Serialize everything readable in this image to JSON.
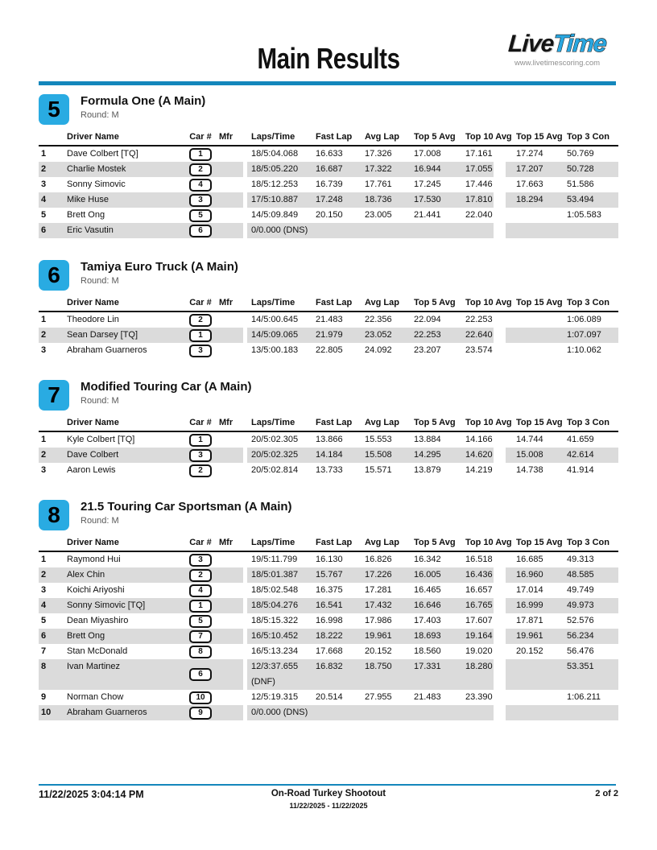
{
  "header": {
    "title": "Main Results",
    "logo_live": "Live",
    "logo_time": "Time",
    "logo_url": "www.livetimescoring.com"
  },
  "table": {
    "columns": [
      "Driver Name",
      "Car #",
      "Mfr",
      "Laps/Time",
      "Fast Lap",
      "Avg Lap",
      "Top 5 Avg",
      "Top 10 Avg",
      "Top 15 Avg",
      "Top 3 Con"
    ]
  },
  "sections": [
    {
      "number": "5",
      "title": "Formula One (A Main)",
      "round": "Round: M",
      "rows": [
        {
          "pos": "1",
          "driver": "Dave Colbert [TQ]",
          "car": "1",
          "mfr": "",
          "laps": "18/5:04.068",
          "laps2": "",
          "fast": "16.633",
          "avg": "17.326",
          "top5": "17.008",
          "top10": "17.161",
          "top15": "17.274",
          "top3": "50.769"
        },
        {
          "pos": "2",
          "driver": "Charlie Mostek",
          "car": "2",
          "mfr": "",
          "laps": "18/5:05.220",
          "laps2": "",
          "fast": "16.687",
          "avg": "17.322",
          "top5": "16.944",
          "top10": "17.055",
          "top15": "17.207",
          "top3": "50.728"
        },
        {
          "pos": "3",
          "driver": "Sonny Simovic",
          "car": "4",
          "mfr": "",
          "laps": "18/5:12.253",
          "laps2": "",
          "fast": "16.739",
          "avg": "17.761",
          "top5": "17.245",
          "top10": "17.446",
          "top15": "17.663",
          "top3": "51.586"
        },
        {
          "pos": "4",
          "driver": "Mike Huse",
          "car": "3",
          "mfr": "",
          "laps": "17/5:10.887",
          "laps2": "",
          "fast": "17.248",
          "avg": "18.736",
          "top5": "17.530",
          "top10": "17.810",
          "top15": "18.294",
          "top3": "53.494"
        },
        {
          "pos": "5",
          "driver": "Brett Ong",
          "car": "5",
          "mfr": "",
          "laps": "14/5:09.849",
          "laps2": "",
          "fast": "20.150",
          "avg": "23.005",
          "top5": "21.441",
          "top10": "22.040",
          "top15": "",
          "top3": "1:05.583"
        },
        {
          "pos": "6",
          "driver": "Eric Vasutin",
          "car": "6",
          "mfr": "",
          "laps": "0/0.000 (DNS)",
          "laps2": "",
          "fast": "",
          "avg": "",
          "top5": "",
          "top10": "",
          "top15": "",
          "top3": ""
        }
      ]
    },
    {
      "number": "6",
      "title": "Tamiya Euro Truck (A Main)",
      "round": "Round: M",
      "rows": [
        {
          "pos": "1",
          "driver": "Theodore Lin",
          "car": "2",
          "mfr": "",
          "laps": "14/5:00.645",
          "laps2": "",
          "fast": "21.483",
          "avg": "22.356",
          "top5": "22.094",
          "top10": "22.253",
          "top15": "",
          "top3": "1:06.089"
        },
        {
          "pos": "2",
          "driver": "Sean Darsey [TQ]",
          "car": "1",
          "mfr": "",
          "laps": "14/5:09.065",
          "laps2": "",
          "fast": "21.979",
          "avg": "23.052",
          "top5": "22.253",
          "top10": "22.640",
          "top15": "",
          "top3": "1:07.097"
        },
        {
          "pos": "3",
          "driver": "Abraham Guarneros",
          "car": "3",
          "mfr": "",
          "laps": "13/5:00.183",
          "laps2": "",
          "fast": "22.805",
          "avg": "24.092",
          "top5": "23.207",
          "top10": "23.574",
          "top15": "",
          "top3": "1:10.062"
        }
      ]
    },
    {
      "number": "7",
      "title": "Modified Touring Car (A Main)",
      "round": "Round: M",
      "rows": [
        {
          "pos": "1",
          "driver": "Kyle Colbert [TQ]",
          "car": "1",
          "mfr": "",
          "laps": "20/5:02.305",
          "laps2": "",
          "fast": "13.866",
          "avg": "15.553",
          "top5": "13.884",
          "top10": "14.166",
          "top15": "14.744",
          "top3": "41.659"
        },
        {
          "pos": "2",
          "driver": "Dave Colbert",
          "car": "3",
          "mfr": "",
          "laps": "20/5:02.325",
          "laps2": "",
          "fast": "14.184",
          "avg": "15.508",
          "top5": "14.295",
          "top10": "14.620",
          "top15": "15.008",
          "top3": "42.614"
        },
        {
          "pos": "3",
          "driver": "Aaron Lewis",
          "car": "2",
          "mfr": "",
          "laps": "20/5:02.814",
          "laps2": "",
          "fast": "13.733",
          "avg": "15.571",
          "top5": "13.879",
          "top10": "14.219",
          "top15": "14.738",
          "top3": "41.914"
        }
      ]
    },
    {
      "number": "8",
      "title": "21.5 Touring Car Sportsman (A Main)",
      "round": "Round: M",
      "rows": [
        {
          "pos": "1",
          "driver": "Raymond Hui",
          "car": "3",
          "mfr": "",
          "laps": "19/5:11.799",
          "laps2": "",
          "fast": "16.130",
          "avg": "16.826",
          "top5": "16.342",
          "top10": "16.518",
          "top15": "16.685",
          "top3": "49.313"
        },
        {
          "pos": "2",
          "driver": "Alex Chin",
          "car": "2",
          "mfr": "",
          "laps": "18/5:01.387",
          "laps2": "",
          "fast": "15.767",
          "avg": "17.226",
          "top5": "16.005",
          "top10": "16.436",
          "top15": "16.960",
          "top3": "48.585"
        },
        {
          "pos": "3",
          "driver": "Koichi Ariyoshi",
          "car": "4",
          "mfr": "",
          "laps": "18/5:02.548",
          "laps2": "",
          "fast": "16.375",
          "avg": "17.281",
          "top5": "16.465",
          "top10": "16.657",
          "top15": "17.014",
          "top3": "49.749"
        },
        {
          "pos": "4",
          "driver": "Sonny Simovic [TQ]",
          "car": "1",
          "mfr": "",
          "laps": "18/5:04.276",
          "laps2": "",
          "fast": "16.541",
          "avg": "17.432",
          "top5": "16.646",
          "top10": "16.765",
          "top15": "16.999",
          "top3": "49.973"
        },
        {
          "pos": "5",
          "driver": "Dean Miyashiro",
          "car": "5",
          "mfr": "",
          "laps": "18/5:15.322",
          "laps2": "",
          "fast": "16.998",
          "avg": "17.986",
          "top5": "17.403",
          "top10": "17.607",
          "top15": "17.871",
          "top3": "52.576"
        },
        {
          "pos": "6",
          "driver": "Brett Ong",
          "car": "7",
          "mfr": "",
          "laps": "16/5:10.452",
          "laps2": "",
          "fast": "18.222",
          "avg": "19.961",
          "top5": "18.693",
          "top10": "19.164",
          "top15": "19.961",
          "top3": "56.234"
        },
        {
          "pos": "7",
          "driver": "Stan McDonald",
          "car": "8",
          "mfr": "",
          "laps": "16/5:13.234",
          "laps2": "",
          "fast": "17.668",
          "avg": "20.152",
          "top5": "18.560",
          "top10": "19.020",
          "top15": "20.152",
          "top3": "56.476"
        },
        {
          "pos": "8",
          "driver": "Ivan Martinez",
          "car": "6",
          "mfr": "",
          "laps": "12/3:37.655",
          "laps2": "(DNF)",
          "fast": "16.832",
          "avg": "18.750",
          "top5": "17.331",
          "top10": "18.280",
          "top15": "",
          "top3": "53.351"
        },
        {
          "pos": "9",
          "driver": "Norman Chow",
          "car": "10",
          "mfr": "",
          "laps": "12/5:19.315",
          "laps2": "",
          "fast": "20.514",
          "avg": "27.955",
          "top5": "21.483",
          "top10": "23.390",
          "top15": "",
          "top3": "1:06.211"
        },
        {
          "pos": "10",
          "driver": "Abraham Guarneros",
          "car": "9",
          "mfr": "",
          "laps": "0/0.000 (DNS)",
          "laps2": "",
          "fast": "",
          "avg": "",
          "top5": "",
          "top10": "",
          "top15": "",
          "top3": ""
        }
      ]
    }
  ],
  "footer": {
    "timestamp": "11/22/2025 3:04:14 PM",
    "event": "On-Road Turkey Shootout",
    "dates": "11/22/2025 - 11/22/2025",
    "page": "2 of 2"
  },
  "colors": {
    "accent_badge": "#29ABE2",
    "rule": "#1487BC",
    "zebra_row": "#DBDBDB",
    "logo_time_blue": "#2AA7E0"
  }
}
